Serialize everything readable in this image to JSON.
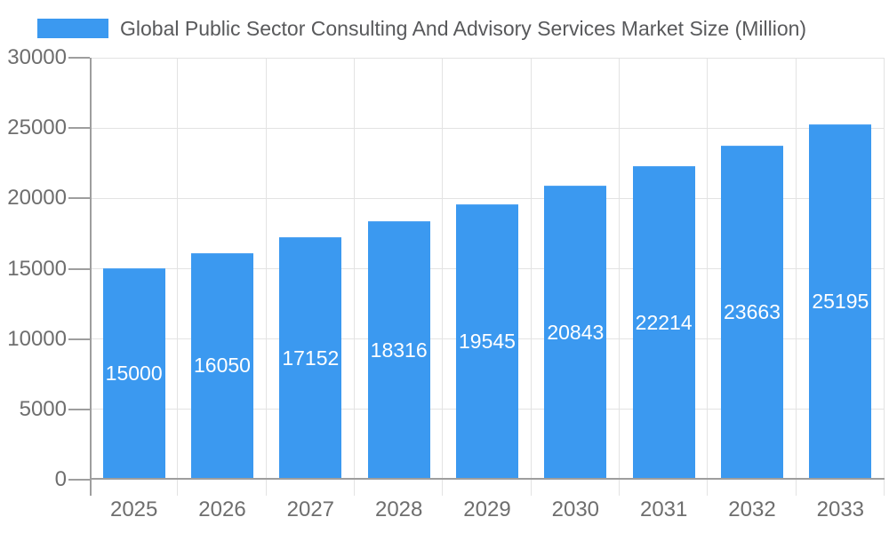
{
  "chart_data": {
    "type": "bar",
    "title": "Global Public Sector Consulting And Advisory Services Market Size (Million)",
    "legend_label": "Global Public Sector Consulting And Advisory Services Market Size (Million)",
    "legend_position": "top-left",
    "categories": [
      "2025",
      "2026",
      "2027",
      "2028",
      "2029",
      "2030",
      "2031",
      "2032",
      "2033"
    ],
    "values": [
      15000,
      16050,
      17152,
      18316,
      19545,
      20843,
      22214,
      23663,
      25195
    ],
    "xlabel": "",
    "ylabel": "",
    "ylim": [
      0,
      30000
    ],
    "yticks": [
      0,
      5000,
      10000,
      15000,
      20000,
      25000,
      30000
    ],
    "grid": "on",
    "bar_labels_inside": true,
    "colors": {
      "bar": "#3b99f0",
      "bar_edge": "#54a5f2",
      "bar_label_text": "#ffffff",
      "grid_line": "#e3e3e3",
      "axis_line": "#9e9e9e",
      "axis_text": "#6e6e6e",
      "title_text": "#58595b",
      "background": "#ffffff"
    }
  }
}
